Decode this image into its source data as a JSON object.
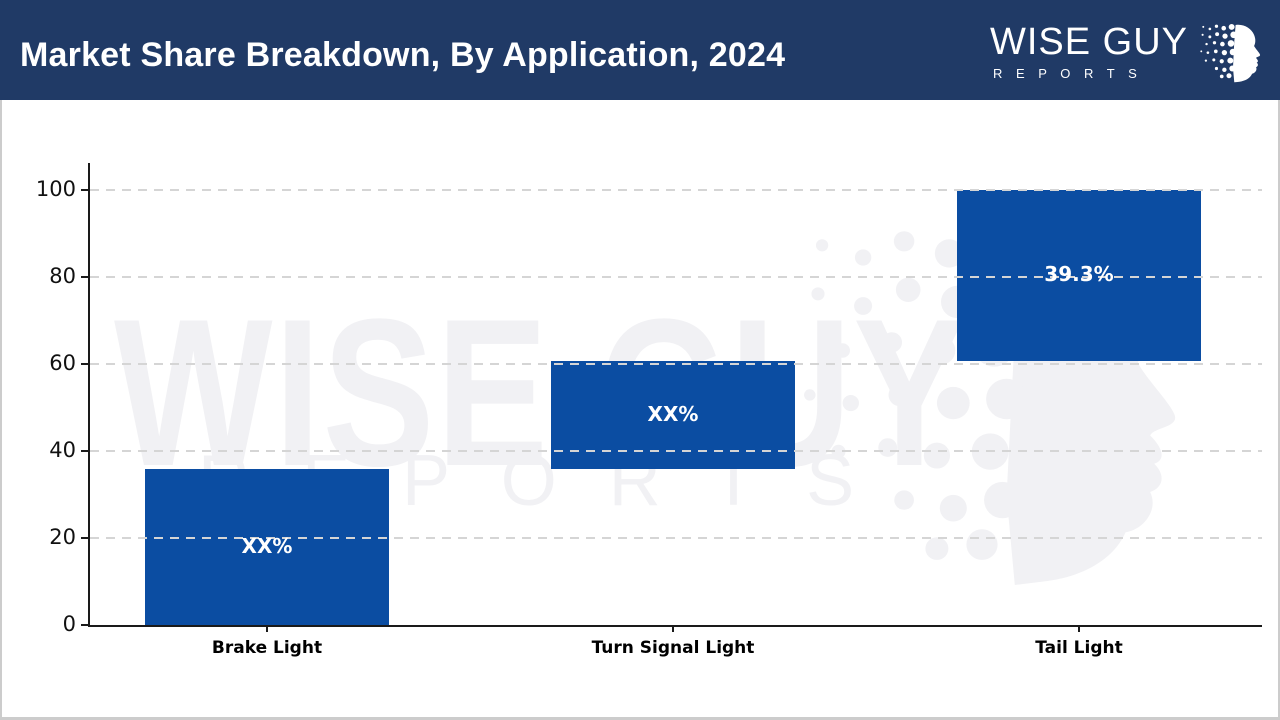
{
  "header": {
    "title": "Market Share Breakdown, By Application, 2024",
    "logo_line1": "WISE GUY",
    "logo_line2": "R E P O R T S"
  },
  "watermark": {
    "line1": "WISE GUY",
    "line2": "R E P O R T S"
  },
  "chart_data": {
    "type": "bar",
    "variant": "stacked_percentage_waterfall",
    "title": "Market Share Breakdown, By Application, 2024",
    "categories": [
      "Brake Light",
      "Turn Signal Light",
      "Tail Light"
    ],
    "series": [
      {
        "name": "Market Share (%)",
        "segments": [
          {
            "category": "Brake Light",
            "start": 0,
            "end": 35.8,
            "label": "XX%"
          },
          {
            "category": "Turn Signal Light",
            "start": 35.8,
            "end": 60.7,
            "label": "XX%"
          },
          {
            "category": "Tail Light",
            "start": 60.7,
            "end": 100,
            "label": "39.3%",
            "value": 39.3
          }
        ]
      }
    ],
    "yticks": [
      0,
      20,
      40,
      60,
      80,
      100
    ],
    "ylim": [
      0,
      106
    ],
    "xlabel": "",
    "ylabel": "",
    "grid": "horizontal_dashed",
    "legend": "none",
    "colors": {
      "bar": "#0B4DA2",
      "bar_label": "#FFFFFF",
      "axis": "#1A1A1A",
      "grid": "#D5D5D5",
      "header_bg": "#203A66",
      "watermark": "#F1F1F4"
    }
  }
}
